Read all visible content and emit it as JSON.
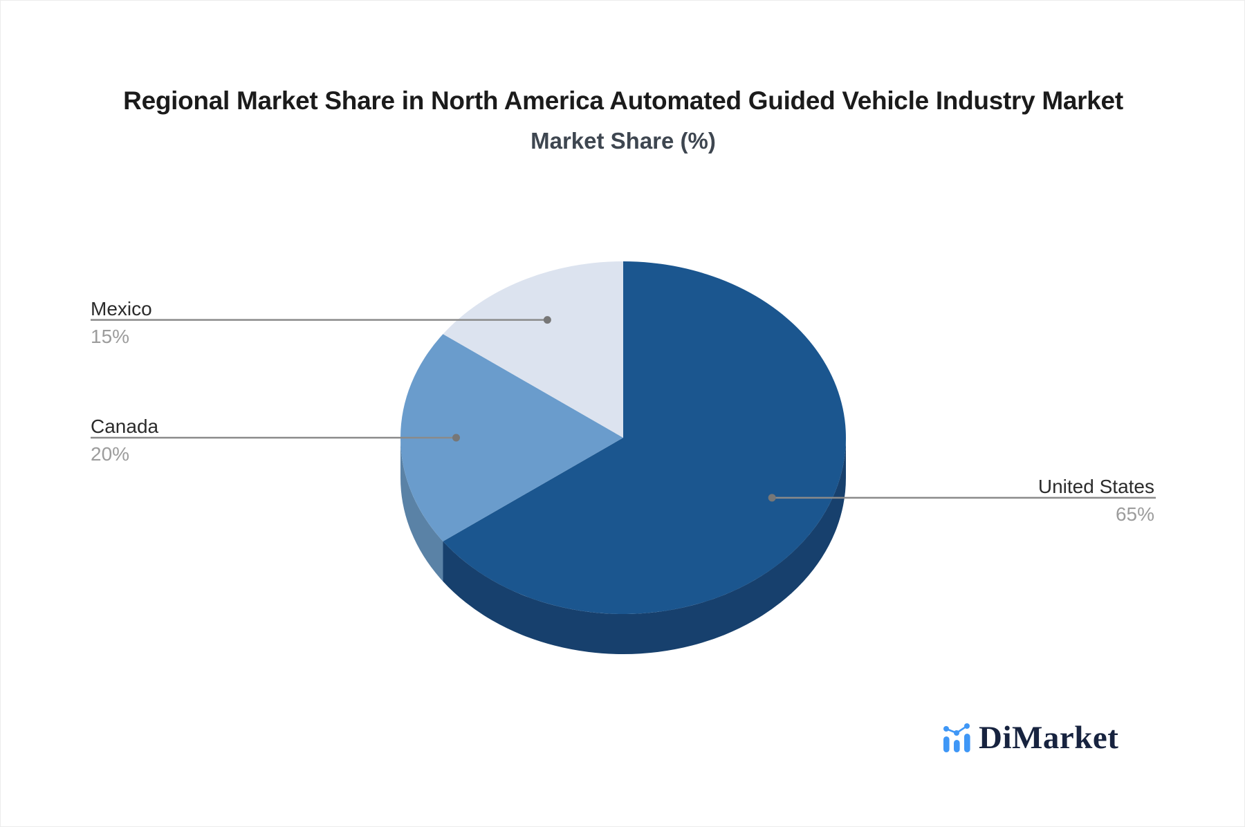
{
  "title": "Regional Market Share in North America Automated Guided Vehicle Industry Market",
  "subtitle": "Market Share (%)",
  "chart_data": {
    "type": "pie",
    "style": "3d",
    "start_angle_deg": 0,
    "direction": "clockwise",
    "unit": "%",
    "total": 100,
    "slices": [
      {
        "label": "United States",
        "value": 65,
        "value_label": "65%",
        "color": "#1B568F",
        "side_color": "#17406D"
      },
      {
        "label": "Canada",
        "value": 20,
        "value_label": "20%",
        "color": "#6A9CCC",
        "side_color": "#5A82A6"
      },
      {
        "label": "Mexico",
        "value": 15,
        "value_label": "15%",
        "color": "#DCE3EF",
        "side_color": "#C9D3E2"
      }
    ],
    "callout_line_color": "#8A8A8A",
    "callout_dot_color": "#777777",
    "legend_position": "callout-labels"
  },
  "branding": {
    "logo_text": "DiMarket",
    "logo_icon": "bar-line-chart-icon",
    "logo_icon_color": "#3F97F6",
    "logo_text_color": "#17233F"
  }
}
